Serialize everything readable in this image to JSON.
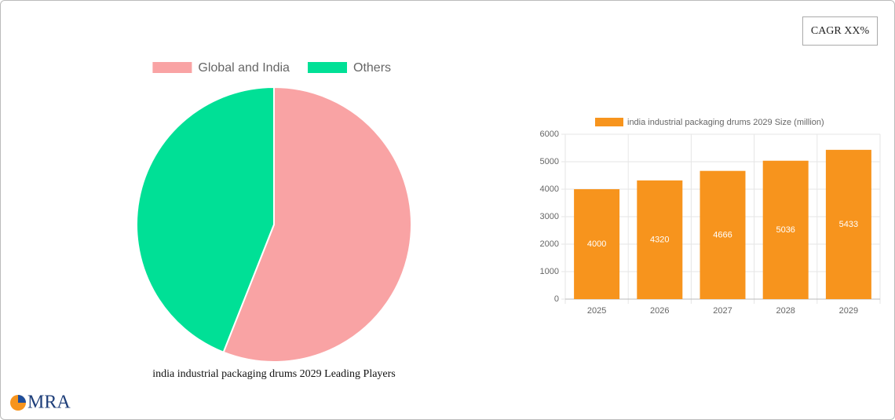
{
  "chart_data": [
    {
      "type": "pie",
      "title": "india industrial packaging drums 2029 Leading Players",
      "categories": [
        "Global and India",
        "Others"
      ],
      "values": [
        56,
        44
      ],
      "colors": [
        "#f9a3a4",
        "#00e096"
      ],
      "legend": "top"
    },
    {
      "type": "bar",
      "categories": [
        "2025",
        "2026",
        "2027",
        "2028",
        "2029"
      ],
      "series": [
        {
          "name": "india industrial packaging drums 2029 Size (million)",
          "color": "#f7941d",
          "values": [
            4000,
            4320,
            4666,
            5036,
            5433
          ]
        }
      ],
      "ylim": [
        0,
        6000
      ],
      "yticks": [
        0,
        1000,
        2000,
        3000,
        4000,
        5000,
        6000
      ],
      "grid": true,
      "legend": "top"
    }
  ],
  "badge": "CAGR XX%",
  "logo": "MRA"
}
